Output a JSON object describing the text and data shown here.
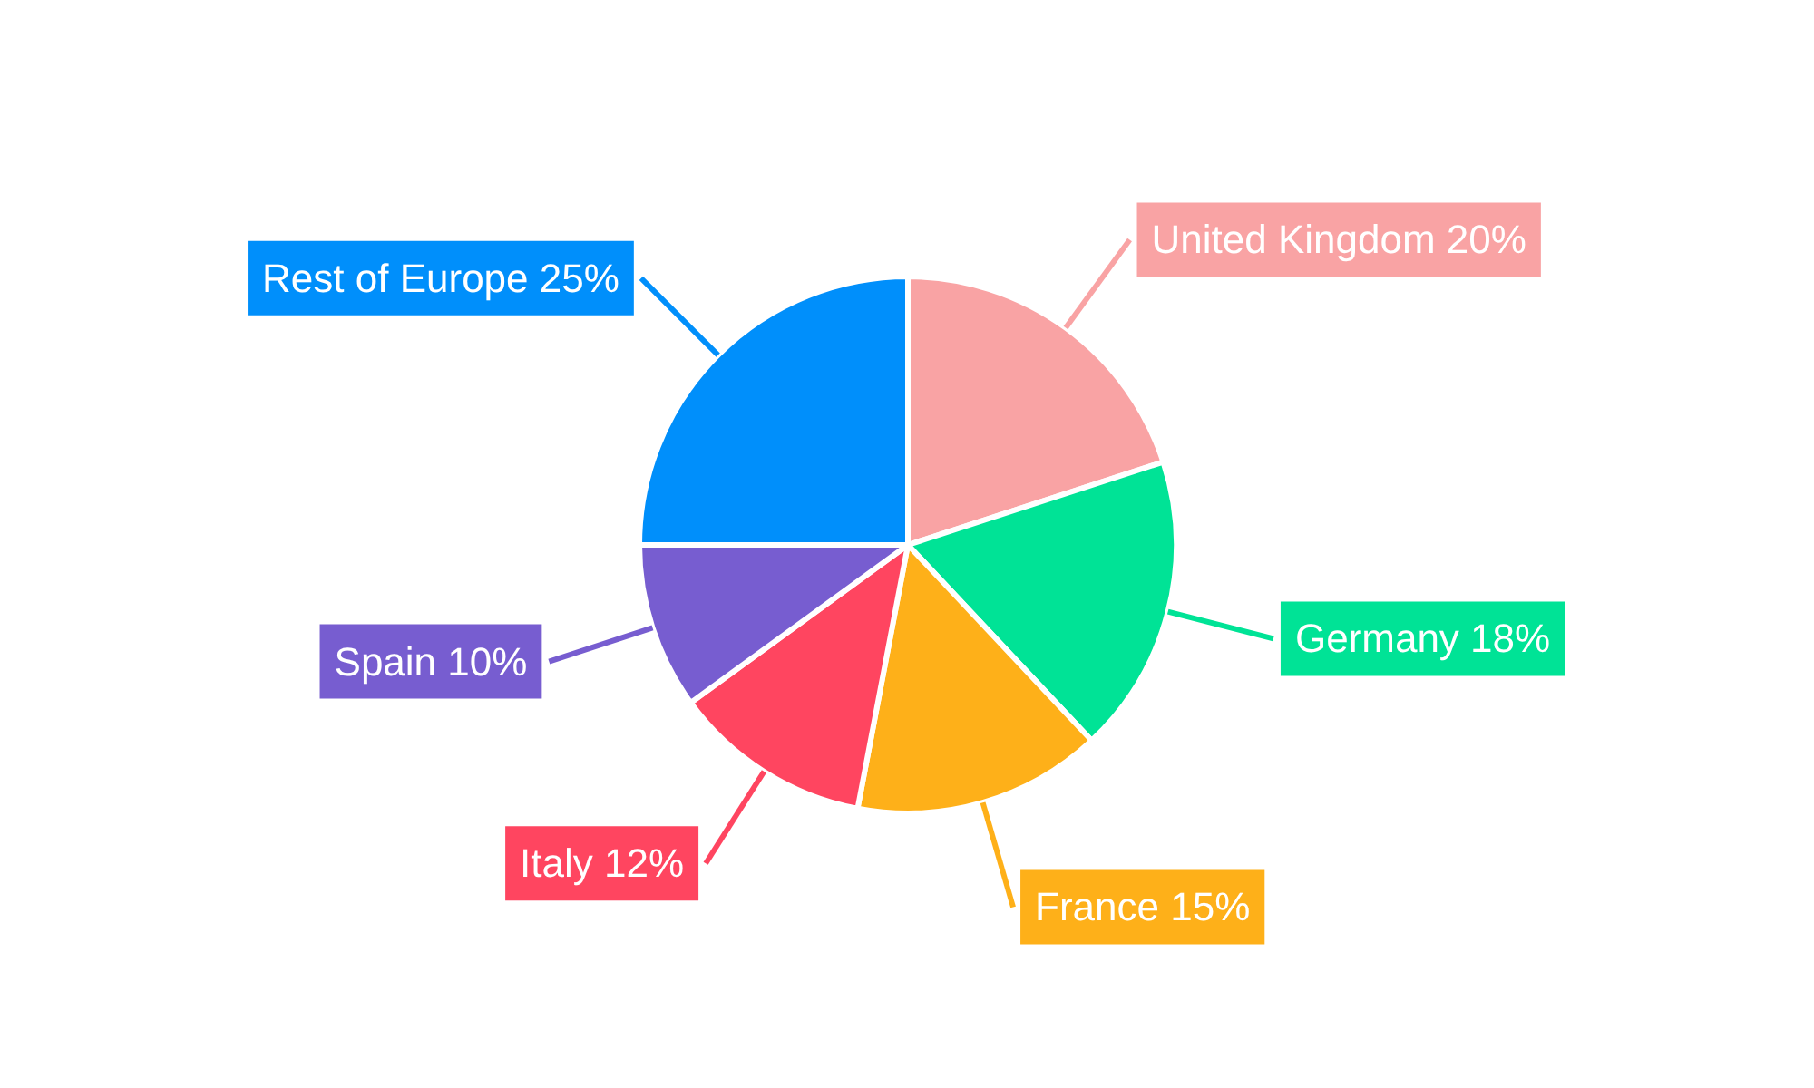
{
  "chart_data": {
    "type": "pie",
    "categories": [
      "United Kingdom",
      "Germany",
      "France",
      "Italy",
      "Spain",
      "Rest of Europe"
    ],
    "values": [
      20,
      18,
      15,
      12,
      10,
      25
    ],
    "value_labels": [
      "20%",
      "18%",
      "15%",
      "12%",
      "10%",
      "25%"
    ],
    "colors": [
      "#f9a3a4",
      "#00e396",
      "#feb019",
      "#ff4560",
      "#775dd0",
      "#008ffb"
    ]
  }
}
